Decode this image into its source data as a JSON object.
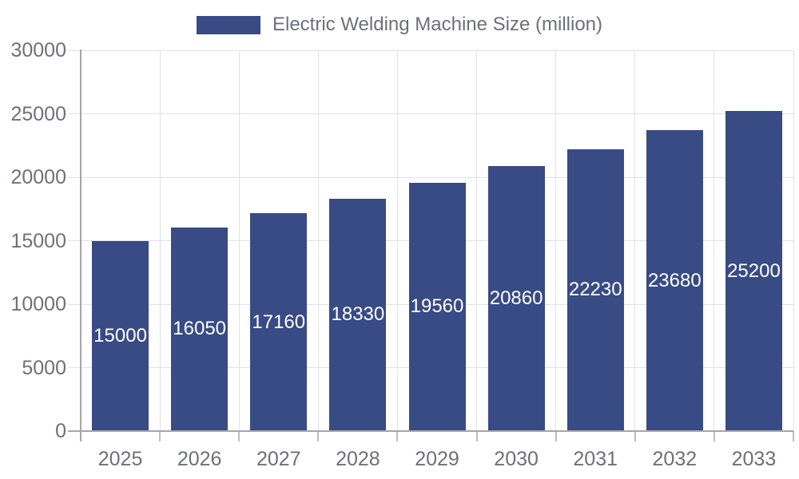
{
  "chart_data": {
    "type": "bar",
    "title": "",
    "categories": [
      "2025",
      "2026",
      "2027",
      "2028",
      "2029",
      "2030",
      "2031",
      "2032",
      "2033"
    ],
    "series": [
      {
        "name": "Electric Welding Machine Size (million)",
        "values": [
          15000,
          16050,
          17160,
          18330,
          19560,
          20860,
          22230,
          23680,
          25200
        ]
      }
    ],
    "xlabel": "",
    "ylabel": "",
    "ylim": [
      0,
      30000
    ],
    "yticks": [
      0,
      5000,
      10000,
      15000,
      20000,
      25000,
      30000
    ],
    "grid": true,
    "legend_position": "top-center",
    "value_labels": "inside-middle-white",
    "style": {
      "bar_color": "#394b84",
      "grid_color": "#e1e1e7",
      "axis_color": "#a6a6aa",
      "tick_color": "#bdbdc2",
      "text_color": "#6e7079",
      "value_label_color": "#ffffff",
      "background": "#ffffff"
    }
  }
}
